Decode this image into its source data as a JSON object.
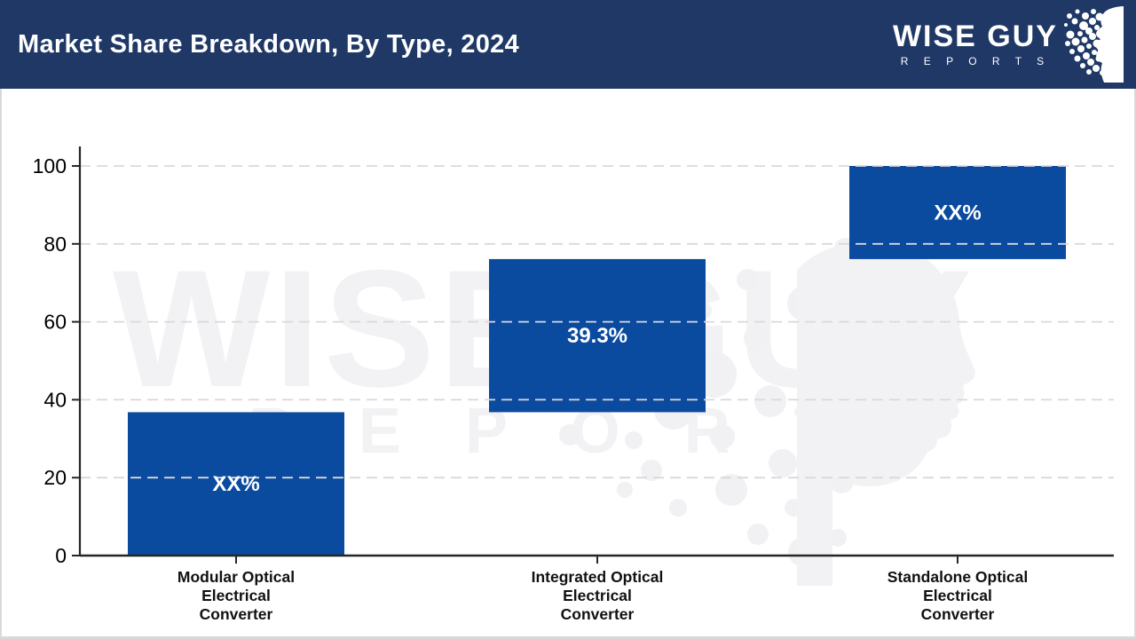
{
  "header": {
    "title": "Market Share Breakdown, By Type, 2024",
    "logo": {
      "brand": "WISE GUY",
      "tagline": "R E P O R T S"
    }
  },
  "watermark": {
    "line1": "WISE GUY",
    "line2": "R E P O R T S"
  },
  "chart_data": {
    "type": "bar",
    "subtype": "stacked-waterfall-segments",
    "title": "Market Share Breakdown, By Type, 2024",
    "categories": [
      [
        "Modular Optical",
        "Electrical",
        "Converter"
      ],
      [
        "Integrated Optical",
        "Electrical",
        "Converter"
      ],
      [
        "Standalone Optical",
        "Electrical",
        "Converter"
      ]
    ],
    "bars": [
      {
        "start": 0,
        "end": 36.8,
        "value_label": "XX%"
      },
      {
        "start": 36.8,
        "end": 76.1,
        "value_label": "39.3%"
      },
      {
        "start": 76.1,
        "end": 100,
        "value_label": "XX%"
      }
    ],
    "yticks": [
      0,
      20,
      40,
      60,
      80,
      100
    ],
    "ylim": [
      0,
      105
    ],
    "xlabel": "",
    "ylabel": "",
    "legend": "none",
    "grid": "horizontal-dashed",
    "colors": {
      "bar": "#0a4a9f",
      "grid": "#d9d9d9",
      "axis": "#262626",
      "tick_label": "#000000",
      "category_label": "#111111",
      "value_label": "#ffffff"
    }
  },
  "colors": {
    "header_bg": "#1f3866",
    "content_bg": "#ffffff",
    "watermark": "#f2f2f5"
  }
}
